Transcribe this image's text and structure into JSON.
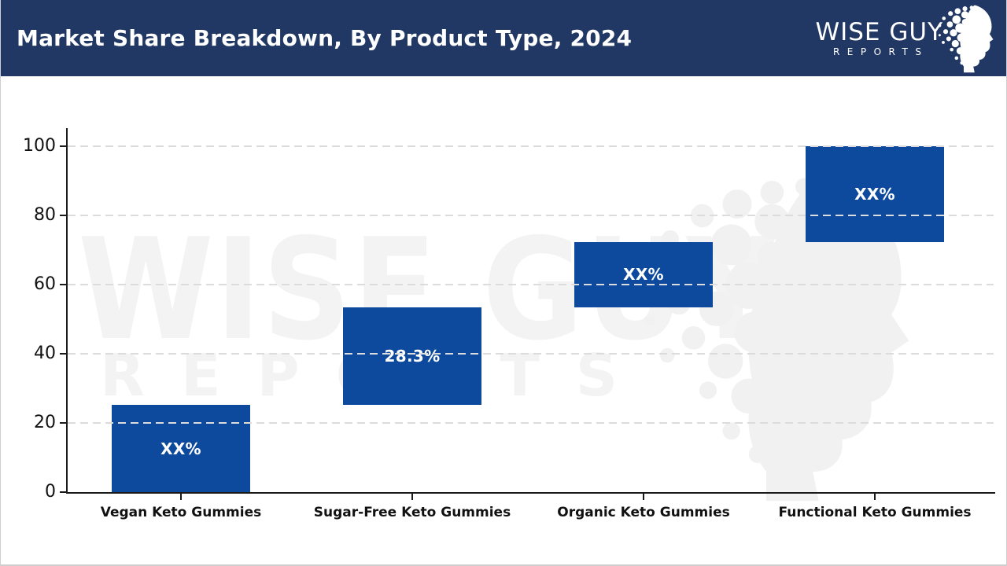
{
  "header": {
    "title": "Market Share Breakdown, By Product Type, 2024",
    "logo": {
      "line1": "WISE GUY",
      "line2": "REPORTS"
    }
  },
  "watermark": {
    "line1": "WISE GUY",
    "line2": "REPORTS"
  },
  "colors": {
    "header_bg": "#213764",
    "bar": "#0d4a9e",
    "grid": "#dcdcdc",
    "axis": "#1a1a1a",
    "bar_label": "#ffffff",
    "watermark": "#f3f3f3"
  },
  "chart_data": {
    "type": "bar",
    "variant": "waterfall-floating-bars",
    "title": "Market Share Breakdown, By Product Type, 2024",
    "xlabel": "",
    "ylabel": "",
    "categories": [
      "Vegan Keto Gummies",
      "Sugar-Free Keto Gummies",
      "Organic Keto Gummies",
      "Functional Keto Gummies"
    ],
    "segments": [
      {
        "category": "Vegan Keto Gummies",
        "start": 0,
        "end": 25.2,
        "label": "XX%"
      },
      {
        "category": "Sugar-Free Keto Gummies",
        "start": 25.2,
        "end": 53.5,
        "label": "28.3%",
        "value": 28.3
      },
      {
        "category": "Organic Keto Gummies",
        "start": 53.5,
        "end": 72.3,
        "label": "XX%"
      },
      {
        "category": "Functional Keto Gummies",
        "start": 72.3,
        "end": 100,
        "label": "XX%"
      }
    ],
    "yticks": [
      0,
      20,
      40,
      60,
      80,
      100
    ],
    "ylim": [
      0,
      105
    ],
    "grid": "horizontal-dashed",
    "legend": "none"
  }
}
